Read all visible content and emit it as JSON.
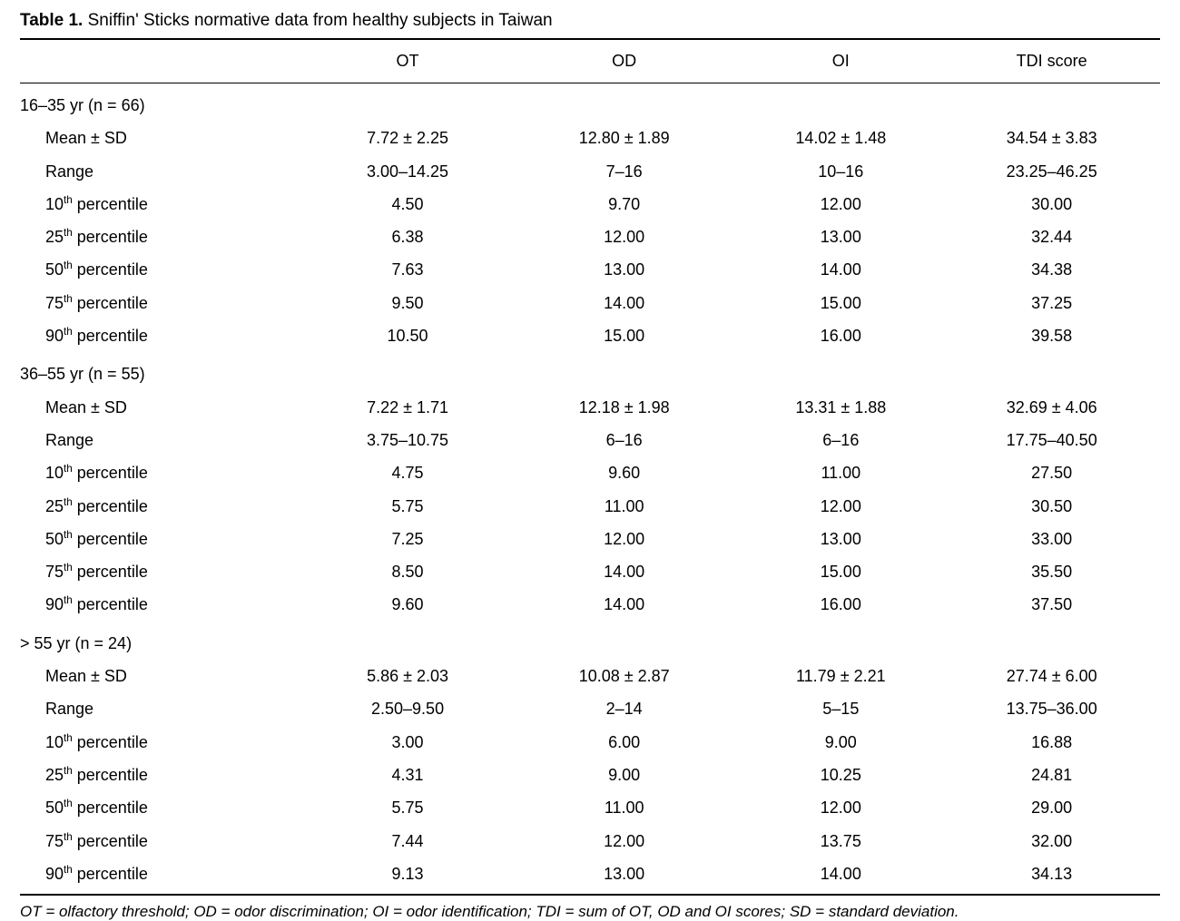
{
  "title_label": "Table 1.",
  "title_text": "Sniffin' Sticks normative data from healthy subjects in Taiwan",
  "columns": [
    "OT",
    "OD",
    "OI",
    "TDI score"
  ],
  "row_labels": {
    "mean_sd": "Mean ± SD",
    "range": "Range",
    "p10_pre": "10",
    "p10_suf": " percentile",
    "p25_pre": "25",
    "p25_suf": " percentile",
    "p50_pre": "50",
    "p50_suf": " percentile",
    "p75_pre": "75",
    "p75_suf": " percentile",
    "p90_pre": "90",
    "p90_suf": " percentile",
    "th": "th"
  },
  "groups": [
    {
      "header": "16–35 yr (n = 66)",
      "rows": {
        "mean_sd": [
          "7.72 ± 2.25",
          "12.80 ± 1.89",
          "14.02 ± 1.48",
          "34.54 ± 3.83"
        ],
        "range": [
          "3.00–14.25",
          "7–16",
          "10–16",
          "23.25–46.25"
        ],
        "p10": [
          "4.50",
          "9.70",
          "12.00",
          "30.00"
        ],
        "p25": [
          "6.38",
          "12.00",
          "13.00",
          "32.44"
        ],
        "p50": [
          "7.63",
          "13.00",
          "14.00",
          "34.38"
        ],
        "p75": [
          "9.50",
          "14.00",
          "15.00",
          "37.25"
        ],
        "p90": [
          "10.50",
          "15.00",
          "16.00",
          "39.58"
        ]
      }
    },
    {
      "header": "36–55 yr (n = 55)",
      "rows": {
        "mean_sd": [
          "7.22 ± 1.71",
          "12.18 ± 1.98",
          "13.31 ± 1.88",
          "32.69 ± 4.06"
        ],
        "range": [
          "3.75–10.75",
          "6–16",
          "6–16",
          "17.75–40.50"
        ],
        "p10": [
          "4.75",
          "9.60",
          "11.00",
          "27.50"
        ],
        "p25": [
          "5.75",
          "11.00",
          "12.00",
          "30.50"
        ],
        "p50": [
          "7.25",
          "12.00",
          "13.00",
          "33.00"
        ],
        "p75": [
          "8.50",
          "14.00",
          "15.00",
          "35.50"
        ],
        "p90": [
          "9.60",
          "14.00",
          "16.00",
          "37.50"
        ]
      }
    },
    {
      "header": "> 55 yr (n = 24)",
      "rows": {
        "mean_sd": [
          "5.86 ± 2.03",
          "10.08 ± 2.87",
          "11.79 ± 2.21",
          "27.74 ± 6.00"
        ],
        "range": [
          "2.50–9.50",
          "2–14",
          "5–15",
          "13.75–36.00"
        ],
        "p10": [
          "3.00",
          "6.00",
          "9.00",
          "16.88"
        ],
        "p25": [
          "4.31",
          "9.00",
          "10.25",
          "24.81"
        ],
        "p50": [
          "5.75",
          "11.00",
          "12.00",
          "29.00"
        ],
        "p75": [
          "7.44",
          "12.00",
          "13.75",
          "32.00"
        ],
        "p90": [
          "9.13",
          "13.00",
          "14.00",
          "34.13"
        ]
      }
    }
  ],
  "footnote": "OT = olfactory threshold; OD = odor discrimination; OI = odor identification; TDI = sum of OT, OD and OI scores; SD = standard deviation."
}
